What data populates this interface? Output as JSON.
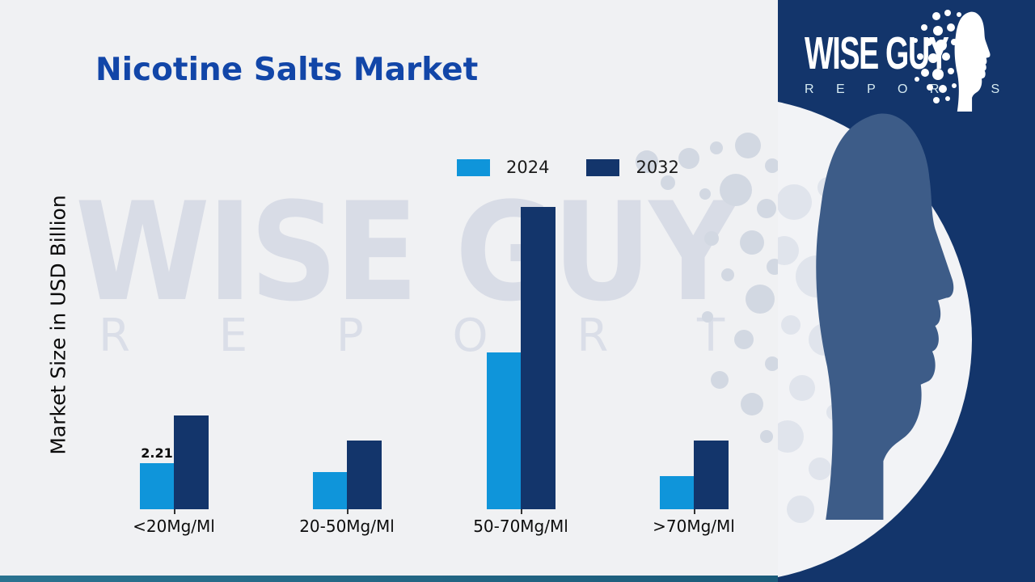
{
  "page": {
    "background": "#f0f1f3"
  },
  "header": {
    "title": "Nicotine Salts Market",
    "title_color": "#1246a8"
  },
  "y_axis": {
    "label": "Market Size in USD Billion"
  },
  "legend": {
    "items": [
      {
        "label": "2024",
        "color": "#0f95da"
      },
      {
        "label": "2032",
        "color": "#13356b"
      }
    ]
  },
  "watermark": {
    "line1": "WISE GUY",
    "line2": "R E P O R T S"
  },
  "chart_data": {
    "type": "bar",
    "title": "Nicotine Salts Market",
    "ylabel": "Market Size in USD Billion",
    "xlabel": "",
    "categories": [
      "<20Mg/Ml",
      "20-50Mg/Ml",
      "50-70Mg/Ml",
      ">70Mg/Ml"
    ],
    "series": [
      {
        "name": "2024",
        "color": "#0f95da",
        "values": [
          2.21,
          1.8,
          7.5,
          1.6
        ]
      },
      {
        "name": "2032",
        "color": "#13356b",
        "values": [
          4.5,
          3.3,
          14.5,
          3.3
        ]
      }
    ],
    "annotations": [
      {
        "series": "2024",
        "category_index": 0,
        "text": "2.21"
      }
    ],
    "ylim": [
      0,
      16
    ],
    "grid": false,
    "legend_position": "top-right"
  },
  "brand_panel": {
    "background": "#13356b",
    "line1": "WISE GUY",
    "line2": "R E P O R T S",
    "accent_bar_colors": [
      "#2a7390",
      "#1b5b7a"
    ]
  }
}
